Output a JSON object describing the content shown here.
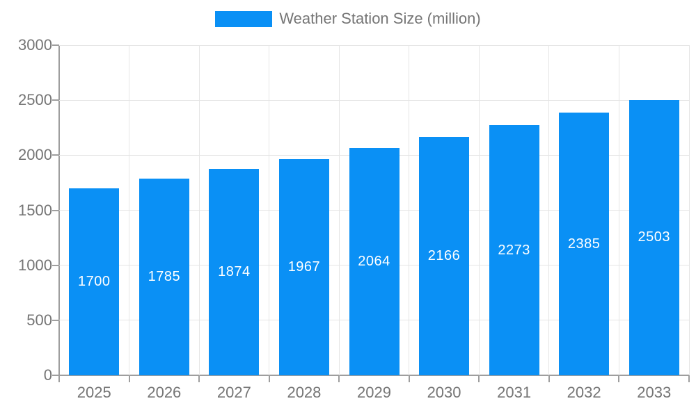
{
  "chart_data": {
    "type": "bar",
    "title": "Weather Station Size (million)",
    "categories": [
      "2025",
      "2026",
      "2027",
      "2028",
      "2029",
      "2030",
      "2031",
      "2032",
      "2033"
    ],
    "series": [
      {
        "name": "Weather Station Size (million)",
        "values": [
          1700,
          1785,
          1874,
          1967,
          2064,
          2166,
          2273,
          2385,
          2503
        ]
      }
    ],
    "value_labels": [
      "1700",
      "1785",
      "1874",
      "1967",
      "2064",
      "2166",
      "2273",
      "2385",
      "2503"
    ],
    "xlabel": "",
    "ylabel": "",
    "ylim": [
      0,
      3000
    ],
    "yticks": [
      0,
      500,
      1000,
      1500,
      2000,
      2500,
      3000
    ],
    "grid": true,
    "legend_position": "top-center",
    "colors": {
      "bar": "#0a90f5",
      "value_label": "#ffffff",
      "axis_text": "#757575",
      "axis_line": "#9e9e9e",
      "grid_line": "#e5e5e5",
      "background": "#ffffff"
    }
  }
}
